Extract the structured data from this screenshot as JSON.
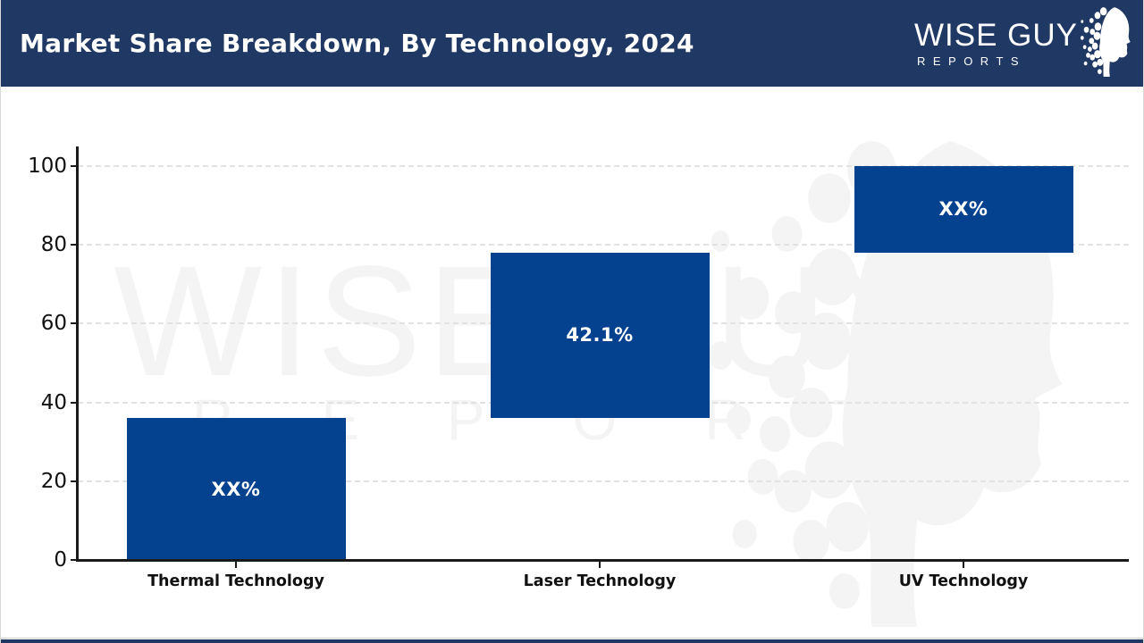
{
  "header": {
    "title": "Market Share Breakdown, By Technology, 2024"
  },
  "logo": {
    "name_line": "WISE GUY",
    "sub_line": "REPORTS",
    "face_icon": "dotted-head-profile-icon"
  },
  "watermark": {
    "name_line": "WISE GUY",
    "sub_line": "REPORTS"
  },
  "chart_data": {
    "type": "bar",
    "subtype": "floating-waterfall",
    "title": "Market Share Breakdown, By Technology, 2024",
    "categories": [
      "Thermal Technology",
      "Laser Technology",
      "UV Technology"
    ],
    "series": [
      {
        "name": "Market Share (%)",
        "segments": [
          {
            "category": "Thermal Technology",
            "start": 0,
            "end": 36,
            "label": "XX%"
          },
          {
            "category": "Laser Technology",
            "start": 36,
            "end": 78.1,
            "label": "42.1%"
          },
          {
            "category": "UV Technology",
            "start": 78.1,
            "end": 100,
            "label": "XX%"
          }
        ]
      }
    ],
    "xlabel": "",
    "ylabel": "",
    "ylim": [
      0,
      105
    ],
    "yticks": [
      0,
      20,
      40,
      60,
      80,
      100
    ],
    "grid": "horizontal-dashed",
    "legend": "none"
  },
  "colors": {
    "header_bg": "#1f3864",
    "bar": "#04418f",
    "bar_label": "#ffffff",
    "grid": "#e2e2e2",
    "axis": "#1a1a1a",
    "tick_text": "#111111",
    "watermark": "#f4f4f4",
    "footer_line": "#cbcbcb"
  }
}
